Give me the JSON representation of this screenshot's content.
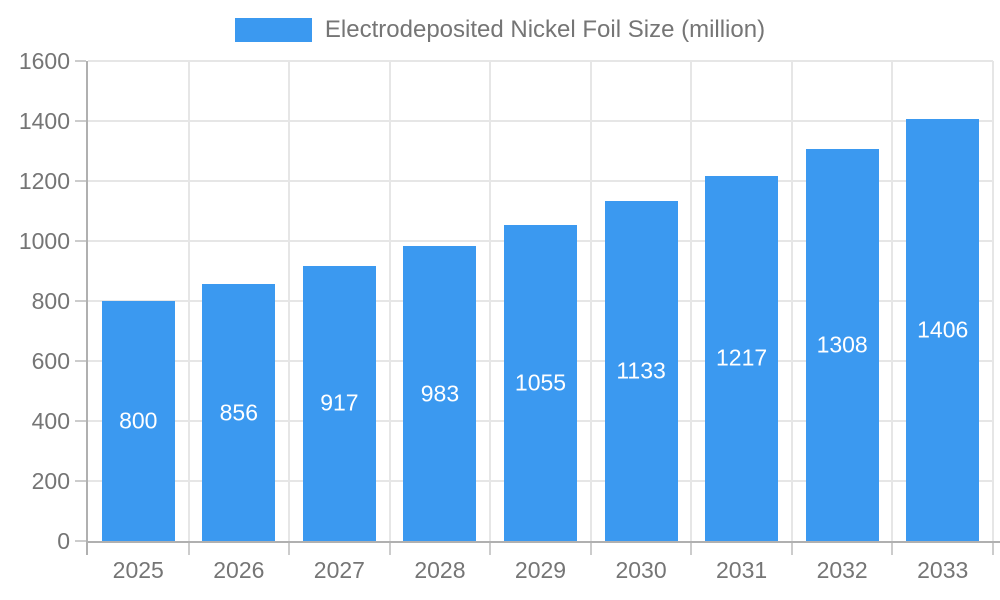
{
  "chart_data": {
    "type": "bar",
    "title": "",
    "series_name": "Electrodeposited Nickel Foil Size (million)",
    "categories": [
      "2025",
      "2026",
      "2027",
      "2028",
      "2029",
      "2030",
      "2031",
      "2032",
      "2033"
    ],
    "values": [
      800,
      856,
      917,
      983,
      1055,
      1133,
      1217,
      1308,
      1406
    ],
    "value_labels": [
      "800",
      "856",
      "917",
      "983",
      "1055",
      "1133",
      "1217",
      "1308",
      "1406"
    ],
    "xlabel": "",
    "ylabel": "",
    "ylim": [
      0,
      1600
    ],
    "y_tick_step": 200,
    "y_ticks": [
      0,
      200,
      400,
      600,
      800,
      1000,
      1200,
      1400,
      1600
    ],
    "grid": true,
    "legend_position": "top-center",
    "colors": {
      "bar": "#3B99F0",
      "value_label": "#FFFFFF",
      "text": "#757575",
      "gridline": "#E6E6E6",
      "axis_line": "#B0B0B0",
      "tick": "#CCCCCC",
      "background": "#FFFFFF"
    }
  }
}
